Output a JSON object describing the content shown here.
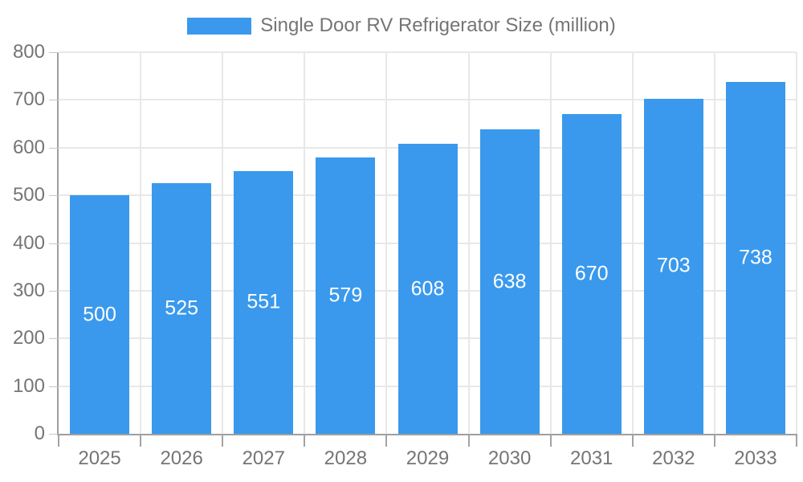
{
  "legend": {
    "label": "Single Door RV Refrigerator Size (million)"
  },
  "colors": {
    "bar": "#3A99EC",
    "text": "#757575",
    "gridline": "#e8e8e8",
    "axis_line": "#9e9e9e",
    "y_tick": "#c6c6c6",
    "x_tick": "#a3a3a3",
    "value_label": "#ffffff"
  },
  "chart_data": {
    "type": "bar",
    "title": "Single Door RV Refrigerator Size (million)",
    "categories": [
      "2025",
      "2026",
      "2027",
      "2028",
      "2029",
      "2030",
      "2031",
      "2032",
      "2033"
    ],
    "values": [
      500,
      525,
      551,
      579,
      608,
      638,
      670,
      703,
      738
    ],
    "value_labels_position": "inside-center",
    "xlabel": "",
    "ylabel": "",
    "ylim": [
      0,
      800
    ],
    "yticks": [
      0,
      100,
      200,
      300,
      400,
      500,
      600,
      700,
      800
    ],
    "grid": true,
    "legend_position": "top-center"
  }
}
